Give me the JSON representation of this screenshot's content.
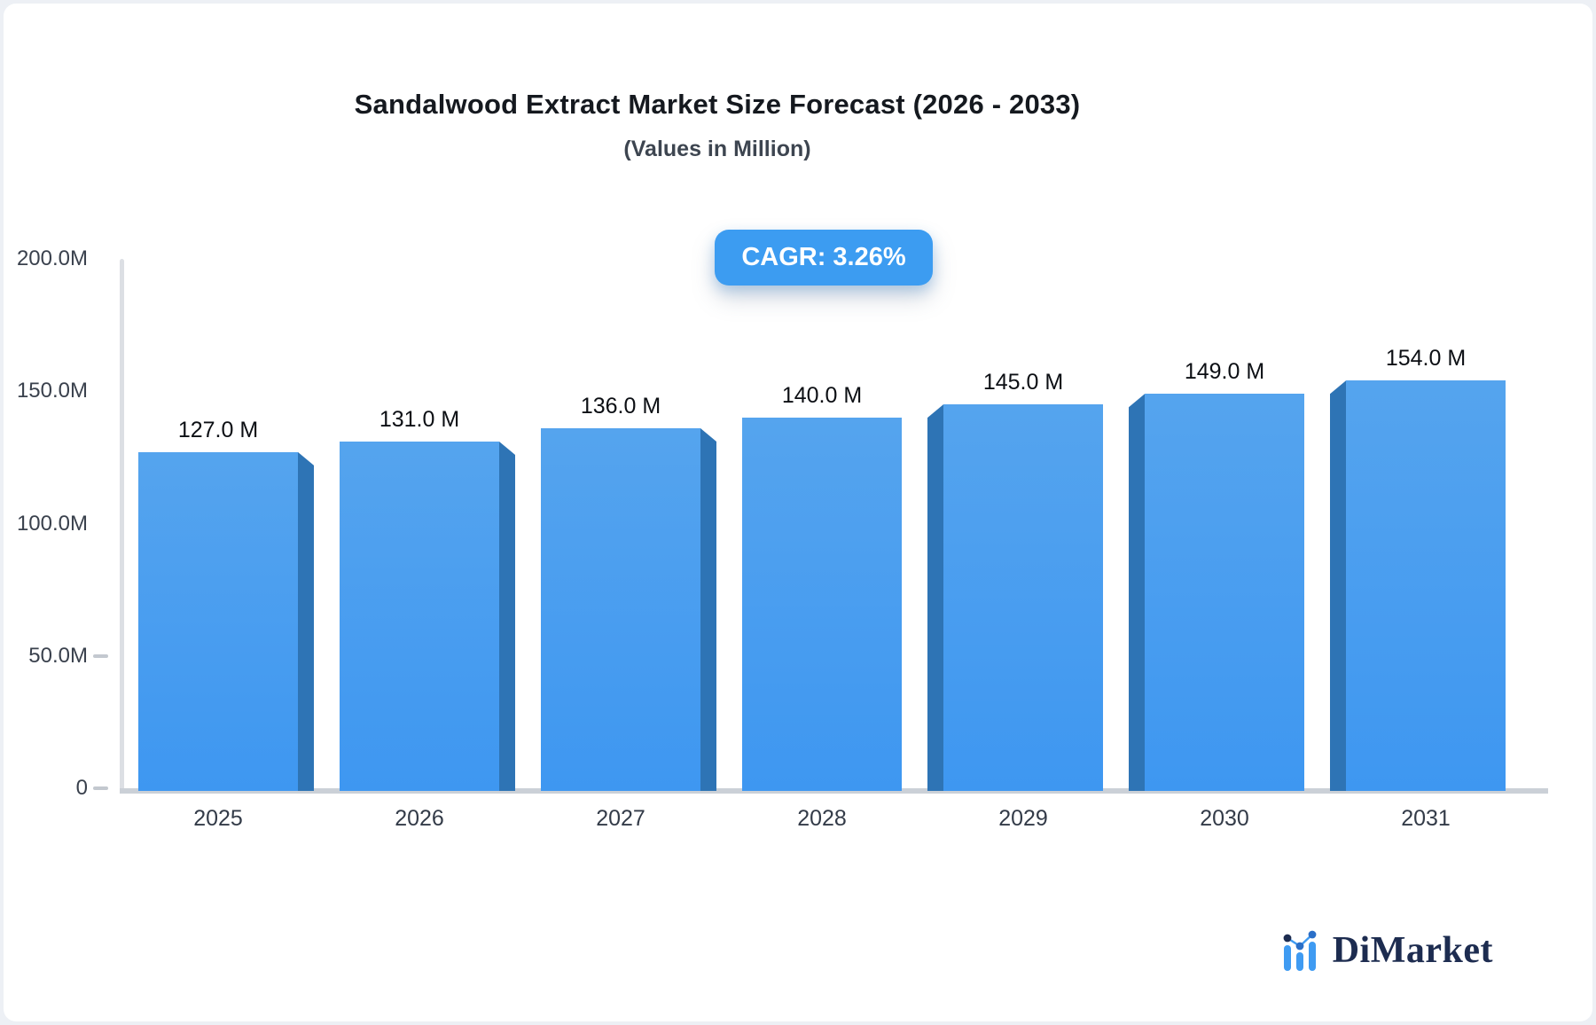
{
  "page": {
    "background": "#edf0f5",
    "card_background": "#ffffff"
  },
  "header": {
    "title": "Sandalwood Extract Market Size Forecast (2026 - 2033)",
    "subtitle": "(Values in Million)"
  },
  "badge": {
    "label": "CAGR: 3.26%",
    "background": "#3c9cf1",
    "text_color": "#ffffff"
  },
  "chart_data": {
    "type": "bar",
    "title": "Sandalwood Extract Market Size Forecast (2026 - 2033)",
    "subtitle": "(Values in Million)",
    "unit": "Million",
    "categories": [
      "2025",
      "2026",
      "2027",
      "2028",
      "2029",
      "2030",
      "2031"
    ],
    "values": [
      127.0,
      131.0,
      136.0,
      140.0,
      145.0,
      149.0,
      154.0
    ],
    "value_labels": [
      "127.0 M",
      "131.0 M",
      "136.0 M",
      "140.0 M",
      "145.0 M",
      "149.0 M",
      "154.0 M"
    ],
    "ylim": [
      0,
      200
    ],
    "y_ticks": [
      {
        "value": 200,
        "label": "200.0M",
        "dash": false
      },
      {
        "value": 150,
        "label": "150.0M",
        "dash": false
      },
      {
        "value": 100,
        "label": "100.0M",
        "dash": false
      },
      {
        "value": 50,
        "label": "50.0M",
        "dash": true
      },
      {
        "value": 0,
        "label": "0",
        "dash": true
      }
    ],
    "grid": false,
    "legend": false,
    "bar_color": "#459DED",
    "bar_side_color": "#2E74B5",
    "effect": "3d-center-perspective"
  },
  "logo": {
    "text": "DiMarket",
    "icon": "bar-chart-logo-icon",
    "text_color": "#1d2c50",
    "icon_bar_color": "#3f9bf2",
    "icon_dot_color": "#2a6fc8"
  }
}
